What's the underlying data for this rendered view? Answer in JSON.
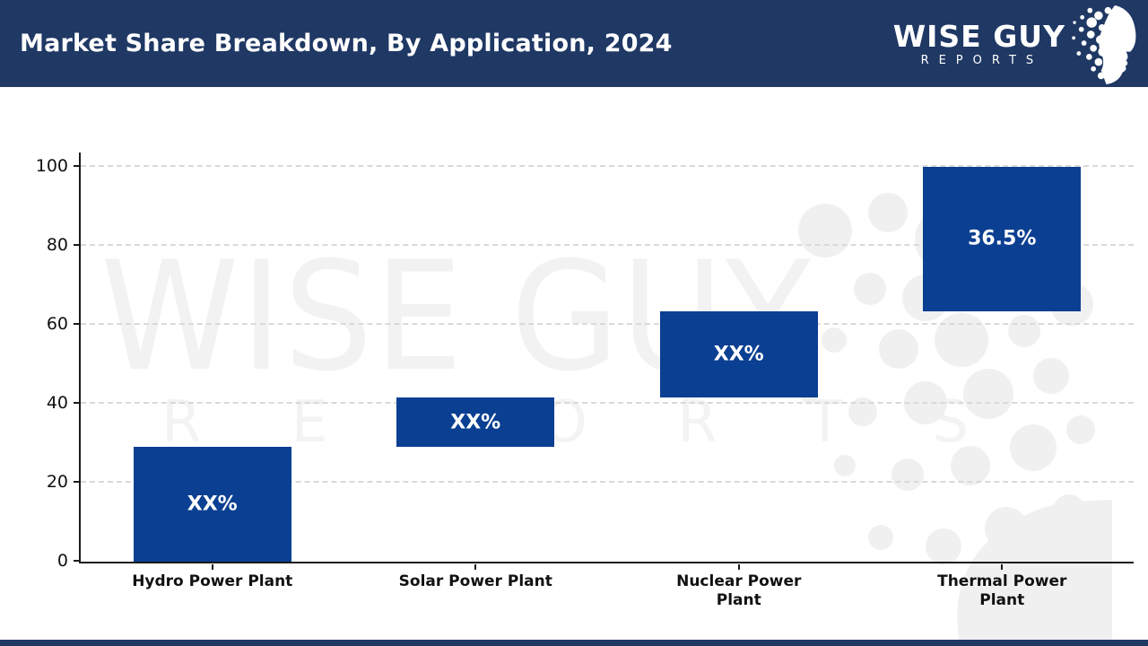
{
  "header": {
    "title": "Market Share Breakdown, By Application, 2024",
    "logo": {
      "line1": "WISE GUY",
      "line2": "REPORTS"
    }
  },
  "watermark": {
    "line1": "WISE GUY",
    "line2": "R E P O R T S"
  },
  "colors": {
    "header_bg": "#1f3864",
    "bar": "#0b3f92",
    "bar_label": "#ffffff",
    "grid": "#d9d9d9",
    "axis": "#1a1a1a",
    "watermark": "#f2f2f2"
  },
  "chart_data": {
    "type": "bar",
    "subtype": "waterfall-floating-bars",
    "title": "Market Share Breakdown, By Application, 2024",
    "categories": [
      "Hydro Power Plant",
      "Solar Power Plant",
      "Nuclear Power Plant",
      "Thermal Power Plant"
    ],
    "bars": [
      {
        "category": "Hydro Power Plant",
        "start": 0,
        "end": 29,
        "label": "XX%"
      },
      {
        "category": "Solar Power Plant",
        "start": 29,
        "end": 41.5,
        "label": "XX%"
      },
      {
        "category": "Nuclear Power Plant",
        "start": 41.5,
        "end": 63.5,
        "label": "XX%"
      },
      {
        "category": "Thermal Power Plant",
        "start": 63.5,
        "end": 100,
        "label": "36.5%"
      }
    ],
    "yticks": [
      0,
      20,
      40,
      60,
      80,
      100
    ],
    "ylim": [
      0,
      103.6
    ],
    "xlabel": "",
    "ylabel": "",
    "grid": "horizontal-dashed",
    "legend": "none",
    "bar_width_fraction": 0.6
  }
}
